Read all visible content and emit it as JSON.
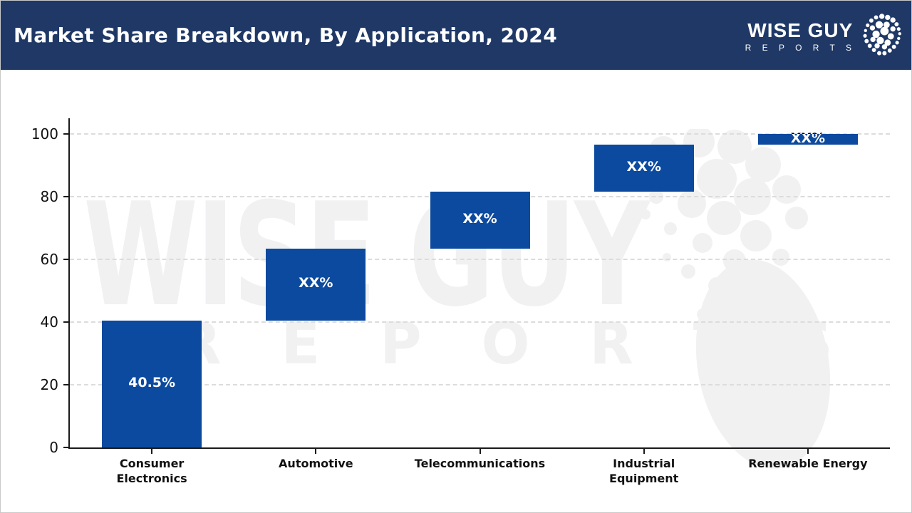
{
  "header": {
    "title": "Market Share Breakdown, By Application, 2024",
    "logo": {
      "line1": "WISE GUY",
      "line2": "R E P O R T S"
    }
  },
  "watermark": {
    "line1": "WISE GUY",
    "line2": "R E P O R T S"
  },
  "colors": {
    "header_bg": "#1f3866",
    "bar": "#0b4a9f",
    "bar_label": "#ffffff",
    "bar_label_overflow": "#000000",
    "grid": "#dcdcdc",
    "axis": "#1a1a1a",
    "tick_text": "#111111",
    "watermark": "#f1f1f2"
  },
  "chart_data": {
    "type": "bar",
    "subtype": "waterfall",
    "title": "Market Share Breakdown, By Application, 2024",
    "categories": [
      "Consumer Electronics",
      "Automotive",
      "Telecommunications",
      "Industrial Equipment",
      "Renewable Energy"
    ],
    "x_tick_labels": [
      "Consumer\nElectronics",
      "Automotive",
      "Telecommunications",
      "Industrial\nEquipment",
      "Renewable Energy"
    ],
    "segments": [
      {
        "category": "Consumer Electronics",
        "start": 0,
        "end": 40.5,
        "label": "40.5%"
      },
      {
        "category": "Automotive",
        "start": 40.5,
        "end": 63.5,
        "label": "XX%"
      },
      {
        "category": "Telecommunications",
        "start": 63.5,
        "end": 81.5,
        "label": "XX%"
      },
      {
        "category": "Industrial Equipment",
        "start": 81.5,
        "end": 96.5,
        "label": "XX%"
      },
      {
        "category": "Renewable Energy",
        "start": 96.5,
        "end": 100,
        "label": "XX%"
      }
    ],
    "yticks": [
      0,
      20,
      40,
      60,
      80,
      100
    ],
    "ylim": [
      0,
      100
    ],
    "xlabel": "",
    "ylabel": "",
    "grid": "horizontal-dashed",
    "legend": "none"
  }
}
